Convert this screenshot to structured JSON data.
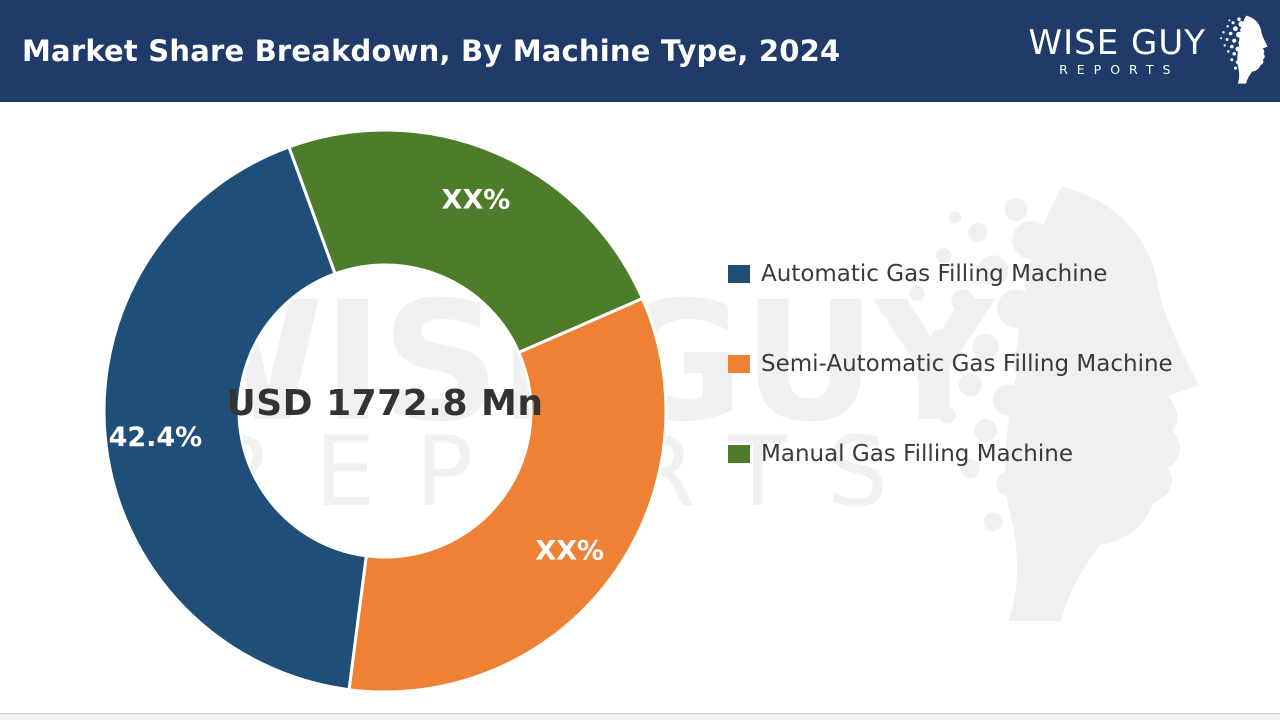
{
  "header": {
    "title": "Market Share Breakdown, By Machine Type, 2024",
    "logo": {
      "name": "WISE GUY",
      "subtitle": "REPORTS",
      "icon": "face-profile-dots-icon"
    }
  },
  "chart_data": {
    "type": "pie",
    "variant": "donut",
    "title": "Market Share Breakdown, By Machine Type, 2024",
    "center_label": "USD 1772.8 Mn",
    "start_angle_deg": -20,
    "direction": "clockwise",
    "legend_position": "right",
    "slices": [
      {
        "name": "Manual Gas Filling Machine",
        "value_pct": 24.0,
        "label": "XX%",
        "color": "#4d7c2a"
      },
      {
        "name": "Semi-Automatic Gas Filling Machine",
        "value_pct": 33.6,
        "label": "XX%",
        "color": "#ee8133"
      },
      {
        "name": "Automatic Gas Filling Machine",
        "value_pct": 42.4,
        "label": "42.4%",
        "color": "#1f4e79"
      }
    ],
    "legend_items": [
      {
        "label": "Automatic Gas Filling Machine",
        "color": "#1f4e79"
      },
      {
        "label": "Semi-Automatic Gas Filling Machine",
        "color": "#ee8133"
      },
      {
        "label": "Manual Gas Filling Machine",
        "color": "#4d7c2a"
      }
    ]
  },
  "watermark": {
    "title": "WISEGUY",
    "subtitle": "REPORTS",
    "icon": "face-profile-dots-icon"
  },
  "colors": {
    "header_bg": "#203a69",
    "title_text": "#ffffff",
    "center_text": "#333333",
    "legend_text": "#3a3a3a",
    "watermark": "#f1f1f2",
    "slice_divider": "#ffffff",
    "footer_bg": "#f2f2f2",
    "footer_line": "#cfcfcf"
  }
}
